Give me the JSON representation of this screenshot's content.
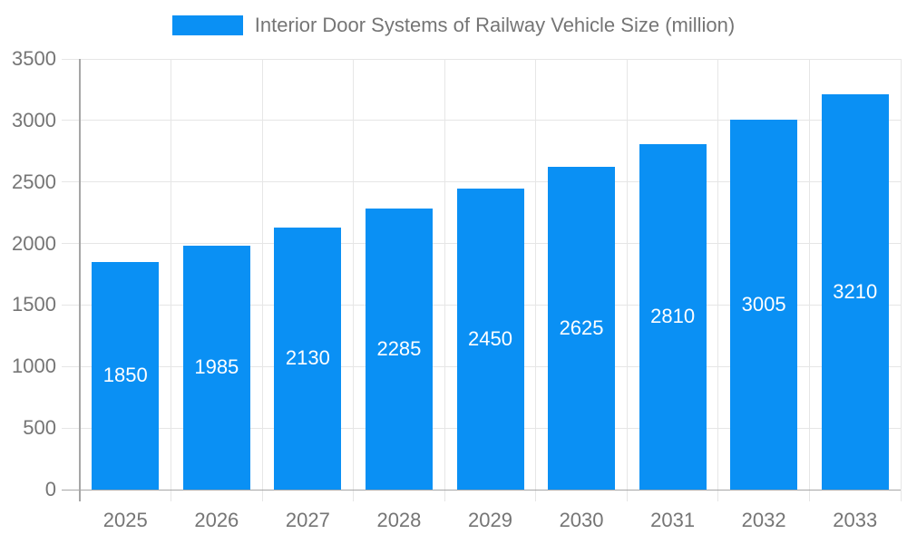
{
  "chart_data": {
    "type": "bar",
    "title": "Interior Door Systems of Railway Vehicle Size (million)",
    "categories": [
      "2025",
      "2026",
      "2027",
      "2028",
      "2029",
      "2030",
      "2031",
      "2032",
      "2033"
    ],
    "values": [
      1850,
      1985,
      2130,
      2285,
      2450,
      2625,
      2810,
      3005,
      3210
    ],
    "xlabel": "",
    "ylabel": "",
    "ylim": [
      0,
      3500
    ],
    "ytick_step": 500,
    "ytick_labels": [
      "0",
      "500",
      "1000",
      "1500",
      "2000",
      "2500",
      "3000",
      "3500"
    ],
    "grid": true,
    "legend_position": "top",
    "bar_labels_inside": true,
    "colors": {
      "bar": "#0a90f4",
      "grid_line": "#e6e6e6",
      "axis_line": "#a6a6a6",
      "tick_text": "#757575",
      "title_text": "#757575",
      "bar_label_text": "#ffffff",
      "background": "#ffffff"
    }
  }
}
